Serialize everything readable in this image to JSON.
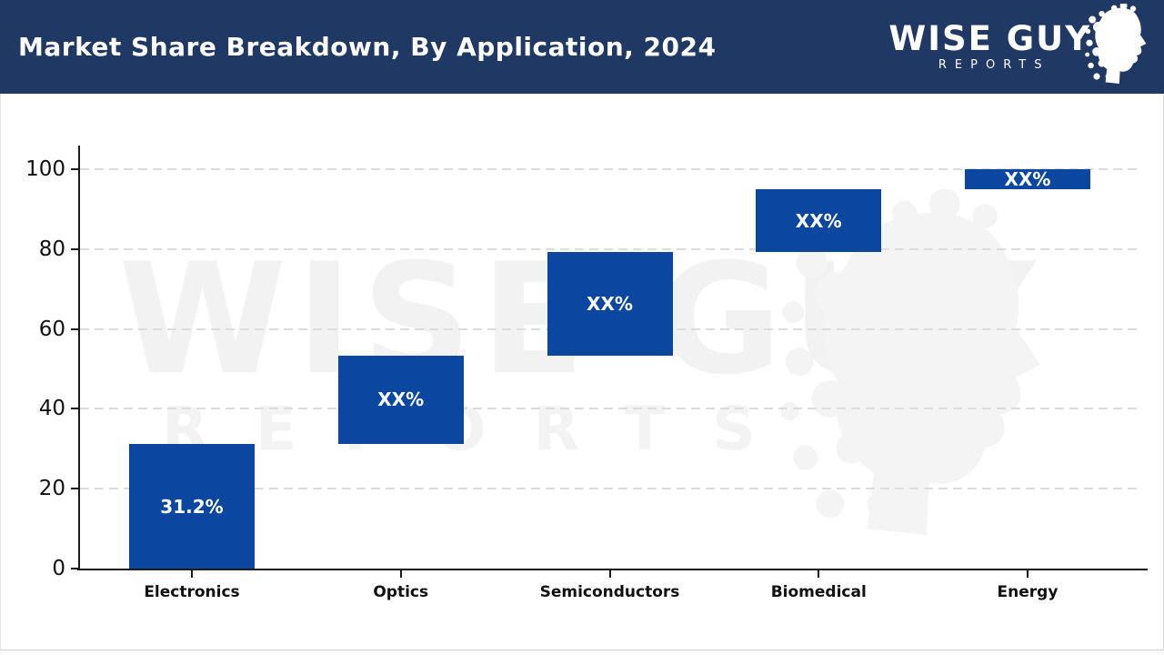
{
  "header": {
    "title": "Market Share Breakdown, By Application, 2024",
    "background": "#1f3864",
    "logo": {
      "line1": "WISE GUY",
      "line2": "REPORTS"
    }
  },
  "watermark": {
    "line1": "WISE GUY",
    "line2": "REPORTS"
  },
  "chart_data": {
    "type": "bar",
    "subtype": "waterfall",
    "title": "Market Share Breakdown, By Application, 2024",
    "categories": [
      "Electronics",
      "Optics",
      "Semiconductors",
      "Biomedical",
      "Energy"
    ],
    "segments": [
      {
        "category": "Electronics",
        "start": 0,
        "end": 31.2,
        "label": "31.2%"
      },
      {
        "category": "Optics",
        "start": 31.2,
        "end": 53.4,
        "label": "XX%"
      },
      {
        "category": "Semiconductors",
        "start": 53.4,
        "end": 79.2,
        "label": "XX%"
      },
      {
        "category": "Biomedical",
        "start": 79.2,
        "end": 95.0,
        "label": "XX%"
      },
      {
        "category": "Energy",
        "start": 95.0,
        "end": 100.0,
        "label": "XX%"
      }
    ],
    "y_ticks": [
      0,
      20,
      40,
      60,
      80,
      100
    ],
    "ylim": [
      0,
      106
    ],
    "xlabel": "",
    "ylabel": "",
    "bar_color": "#0b47a1",
    "grid": "horizontal-dashed",
    "legend": "none"
  }
}
